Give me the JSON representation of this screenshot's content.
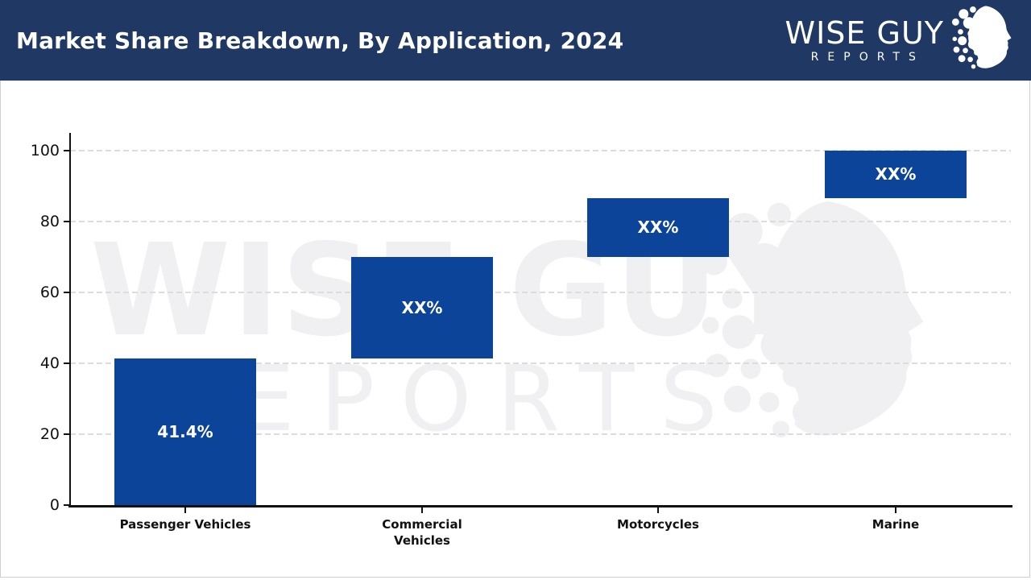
{
  "header": {
    "title": "Market Share Breakdown, By Application, 2024",
    "logo": {
      "brand_line1": "WISE GUY",
      "brand_line2": "REPORTS"
    }
  },
  "watermark": {
    "line1": "WISE GUY",
    "line2": "REPORTS"
  },
  "chart_data": {
    "type": "bar",
    "subtype": "waterfall",
    "title": "Market Share Breakdown, By Application, 2024",
    "categories": [
      "Passenger Vehicles",
      "Commercial\nVehicles",
      "Motorcycles",
      "Marine"
    ],
    "segments": [
      {
        "category": "Passenger Vehicles",
        "start": 0,
        "end": 41.4,
        "label": "41.4%"
      },
      {
        "category": "Commercial Vehicles",
        "start": 41.4,
        "end": 70.0,
        "label": "XX%"
      },
      {
        "category": "Motorcycles",
        "start": 70.0,
        "end": 86.6,
        "label": "XX%"
      },
      {
        "category": "Marine",
        "start": 86.6,
        "end": 100.0,
        "label": "XX%"
      }
    ],
    "ylim": [
      0,
      100
    ],
    "yticks": [
      0,
      20,
      40,
      60,
      80,
      100
    ],
    "xlabel": "",
    "ylabel": "",
    "grid": "horizontal-dashed",
    "legend": "none",
    "colors": {
      "bar": "#0c4499",
      "bar_label": "#ffffff",
      "axis": "#111111",
      "tick_label": "#111111",
      "gridline": "#dcdcdc",
      "header_background": "#1f3864",
      "watermark": "#f0f0f2"
    }
  }
}
